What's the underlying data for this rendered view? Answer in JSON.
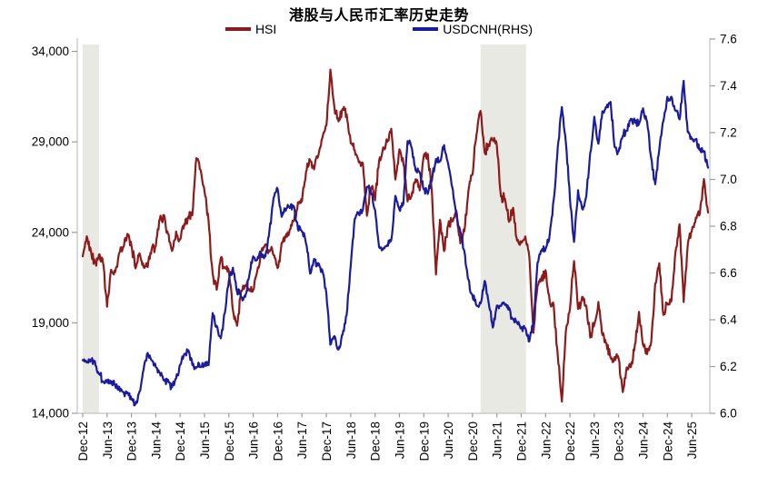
{
  "chart": {
    "title": "港股与人民币汇率历史走势",
    "accent_colors": {
      "hsi_red": "#8E1B1B",
      "usdcnh_blue": "#1B1B9E",
      "band_gray": "#E9E9E3"
    }
  },
  "chart_data": {
    "type": "line",
    "title": "港股与人民币汇率历史走势",
    "grid": false,
    "legend_position": "top",
    "frequency": "monthly",
    "x_start": "Dec-2012",
    "x_end": "Oct-2025",
    "x_tick_labels": [
      "Dec-12",
      "Jun-13",
      "Dec-13",
      "Jun-14",
      "Dec-14",
      "Jun-15",
      "Dec-15",
      "Jun-16",
      "Dec-16",
      "Jun-17",
      "Dec-17",
      "Jun-18",
      "Dec-18",
      "Jun-19",
      "Dec-19",
      "Jun-20",
      "Dec-20",
      "Jun-21",
      "Dec-21",
      "Jun-22",
      "Dec-22",
      "Jun-23",
      "Dec-23",
      "Jun-24",
      "Dec-24",
      "Jun-25"
    ],
    "left_axis": {
      "series": "HSI",
      "tick_labels": [
        "34,000",
        "29,000",
        "24,000",
        "19,000",
        "14,000"
      ],
      "tick_values": [
        34000,
        29000,
        24000,
        19000,
        14000
      ],
      "min": 14000,
      "max": 34000
    },
    "right_axis": {
      "series": "USDCNH",
      "tick_labels": [
        "7.6",
        "7.4",
        "7.2",
        "7.0",
        "6.8",
        "6.6",
        "6.4",
        "6.2",
        "6.0"
      ],
      "tick_values": [
        7.6,
        7.4,
        7.2,
        7.0,
        6.8,
        6.6,
        6.4,
        6.2,
        6.0
      ],
      "min": 6.0,
      "max": 7.6
    },
    "shaded_bands": [
      {
        "from": "Dec-12",
        "to": "Apr-13",
        "from_index": 0,
        "to_index": 4,
        "color": "#E9E9E3"
      },
      {
        "from": "Feb-21",
        "to": "Jan-22",
        "from_index": 98,
        "to_index": 109.2,
        "color": "#E9E9E3"
      }
    ],
    "series": [
      {
        "name": "HSI",
        "axis": "left",
        "color": "#8E1B1B",
        "values": [
          22660,
          23730,
          23020,
          22300,
          22740,
          22390,
          19950,
          21880,
          21730,
          22860,
          23210,
          23880,
          23310,
          22040,
          22840,
          22150,
          22130,
          23080,
          23190,
          24760,
          24900,
          23900,
          23000,
          23990,
          23600,
          24510,
          24820,
          24900,
          28130,
          27420,
          26250,
          24640,
          21670,
          20850,
          22640,
          22000,
          21910,
          19680,
          18800,
          20780,
          21070,
          20820,
          20790,
          21890,
          22980,
          23300,
          22940,
          22790,
          22000,
          23360,
          23740,
          24110,
          24620,
          25660,
          25770,
          27320,
          27970,
          27550,
          28250,
          29180,
          29920,
          33000,
          30845,
          30095,
          30810,
          30470,
          28955,
          28585,
          27890,
          27790,
          24980,
          26510,
          25845,
          27940,
          28630,
          29050,
          29700,
          26900,
          28540,
          27780,
          25725,
          26090,
          26910,
          26345,
          28190,
          28300,
          26200,
          21700,
          24640,
          22960,
          24430,
          24600,
          25180,
          23460,
          24110,
          26340,
          27230,
          29500,
          30700,
          28380,
          28800,
          29150,
          28830,
          25960,
          25880,
          24580,
          25380,
          23480,
          23400,
          23800,
          22710,
          18400,
          21090,
          21420,
          21860,
          20160,
          19950,
          17220,
          14700,
          18600,
          19780,
          22460,
          19790,
          20400,
          19900,
          18230,
          18920,
          20100,
          18380,
          17810,
          17110,
          17040,
          17050,
          15200,
          16510,
          16540,
          17760,
          19550,
          17720,
          17340,
          17990,
          21130,
          22300,
          19420,
          20060,
          20220,
          22940,
          24500,
          20200,
          23290,
          24070,
          24770,
          25080,
          26900,
          25100
        ]
      },
      {
        "name": "USDCNH(RHS)",
        "axis": "right",
        "color": "#1B1B9E",
        "values": [
          6.23,
          6.22,
          6.23,
          6.22,
          6.17,
          6.14,
          6.14,
          6.13,
          6.12,
          6.11,
          6.09,
          6.09,
          6.06,
          6.04,
          6.09,
          6.19,
          6.26,
          6.23,
          6.2,
          6.17,
          6.14,
          6.14,
          6.11,
          6.15,
          6.21,
          6.25,
          6.27,
          6.21,
          6.2,
          6.2,
          6.21,
          6.21,
          6.43,
          6.37,
          6.32,
          6.43,
          6.57,
          6.62,
          6.52,
          6.5,
          6.5,
          6.59,
          6.67,
          6.66,
          6.68,
          6.67,
          6.78,
          6.92,
          6.96,
          6.84,
          6.87,
          6.88,
          6.89,
          6.79,
          6.78,
          6.73,
          6.6,
          6.66,
          6.64,
          6.61,
          6.51,
          6.29,
          6.33,
          6.27,
          6.34,
          6.42,
          6.63,
          6.83,
          6.85,
          6.87,
          6.97,
          6.95,
          6.87,
          6.71,
          6.7,
          6.72,
          6.74,
          6.93,
          6.87,
          6.9,
          7.16,
          7.14,
          7.04,
          7.03,
          6.96,
          6.94,
          7.0,
          7.09,
          7.08,
          7.15,
          7.07,
          6.97,
          6.85,
          6.78,
          6.69,
          6.57,
          6.5,
          6.46,
          6.47,
          6.57,
          6.47,
          6.37,
          6.46,
          6.46,
          6.46,
          6.45,
          6.4,
          6.39,
          6.36,
          6.36,
          6.31,
          6.38,
          6.64,
          6.7,
          6.7,
          6.76,
          6.91,
          7.14,
          7.31,
          7.16,
          6.92,
          6.73,
          6.95,
          6.87,
          6.93,
          7.11,
          7.27,
          7.15,
          7.29,
          7.31,
          7.33,
          7.14,
          7.12,
          7.19,
          7.21,
          7.26,
          7.25,
          7.24,
          7.3,
          7.25,
          7.09,
          6.98,
          7.13,
          7.25,
          7.35,
          7.35,
          7.29,
          7.26,
          7.42,
          7.2,
          7.17,
          7.17,
          7.13,
          7.12,
          7.05
        ]
      }
    ]
  }
}
